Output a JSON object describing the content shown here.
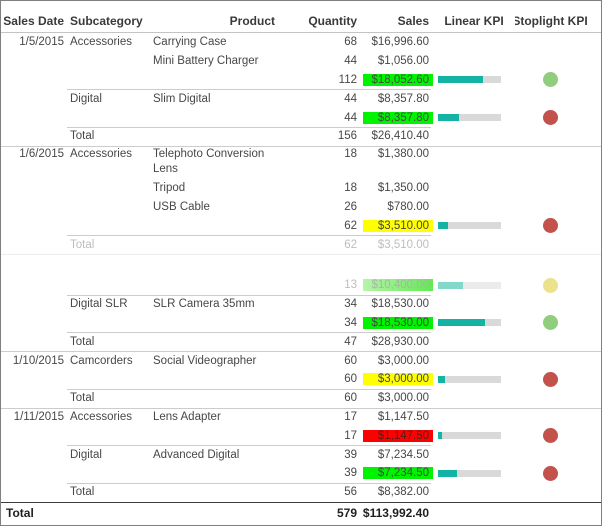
{
  "colors": {
    "kpi_cell_green": "#00f400",
    "kpi_cell_yellow": "#ffff00",
    "kpi_cell_red": "#ff0000",
    "linear_kpi_fill": "#14b3a4",
    "linear_kpi_track": "#d9d9d9",
    "stoplight_green": "#90ce7e",
    "stoplight_red": "#c4524c",
    "stoplight_yellow": "#ece28b"
  },
  "header": {
    "sales_date": "Sales Date",
    "subcategory": "Subcategory",
    "product": "Product",
    "quantity": "Quantity",
    "sales": "Sales",
    "linear_kpi": "Linear KPI",
    "stoplight_kpi": "Stoplight KPI"
  },
  "grand_total": {
    "label": "Total",
    "quantity": "579",
    "sales": "$113,992.40"
  },
  "rows": [
    {
      "t": "detail",
      "date": "1/5/2015",
      "sub": "Accessories",
      "prod": "Carrying Case",
      "qty": "68",
      "sales": "$16,996.60"
    },
    {
      "t": "detail",
      "prod": "Mini Battery Charger",
      "qty": "44",
      "sales": "$1,056.00"
    },
    {
      "t": "kpi",
      "qty": "112",
      "sales": "$18,052.60",
      "cell": "green",
      "bar": 71,
      "light": "green"
    },
    {
      "t": "detail",
      "sub": "Digital",
      "prod": "Slim Digital",
      "qty": "44",
      "sales": "$8,357.80",
      "border": "sub"
    },
    {
      "t": "kpi",
      "qty": "44",
      "sales": "$8,357.80",
      "cell": "green",
      "bar": 33,
      "light": "red"
    },
    {
      "t": "total",
      "label": "Total",
      "qty": "156",
      "sales": "$26,410.40",
      "border": "sub"
    },
    {
      "t": "detail",
      "tall": true,
      "date": "1/6/2015",
      "sub": "Accessories",
      "prod": "Telephoto Conversion Lens",
      "qty": "18",
      "sales": "$1,380.00",
      "border": "full"
    },
    {
      "t": "detail",
      "prod": "Tripod",
      "qty": "18",
      "sales": "$1,350.00"
    },
    {
      "t": "detail",
      "prod": "USB Cable",
      "qty": "26",
      "sales": "$780.00"
    },
    {
      "t": "kpi",
      "qty": "62",
      "sales": "$3,510.00",
      "cell": "yellow",
      "bar": 16,
      "light": "red"
    },
    {
      "t": "total",
      "label": "Total",
      "qty": "62",
      "sales": "$3,510.00",
      "border": "sub",
      "faded": true
    },
    {
      "t": "blank",
      "faded": true,
      "border": "faded"
    },
    {
      "t": "kpi",
      "qty": "13",
      "sales": "$10,400.00",
      "cell": "fadedgreen",
      "bar": 40,
      "light": "yellow",
      "faded": true
    },
    {
      "t": "detail",
      "sub": "Digital SLR",
      "prod": "SLR Camera 35mm",
      "qty": "34",
      "sales": "$18,530.00",
      "border": "sub"
    },
    {
      "t": "kpi",
      "qty": "34",
      "sales": "$18,530.00",
      "cell": "green",
      "bar": 74,
      "light": "green"
    },
    {
      "t": "total",
      "label": "Total",
      "qty": "47",
      "sales": "$28,930.00",
      "border": "sub"
    },
    {
      "t": "detail",
      "date": "1/10/2015",
      "sub": "Camcorders",
      "prod": "Social Videographer",
      "qty": "60",
      "sales": "$3,000.00",
      "border": "full"
    },
    {
      "t": "kpi",
      "qty": "60",
      "sales": "$3,000.00",
      "cell": "yellow",
      "bar": 11,
      "light": "red"
    },
    {
      "t": "total",
      "label": "Total",
      "qty": "60",
      "sales": "$3,000.00",
      "border": "sub"
    },
    {
      "t": "detail",
      "date": "1/11/2015",
      "sub": "Accessories",
      "prod": "Lens Adapter",
      "qty": "17",
      "sales": "$1,147.50",
      "border": "full"
    },
    {
      "t": "kpi",
      "qty": "17",
      "sales": "$1,147.50",
      "cell": "red",
      "bar": 6,
      "light": "red"
    },
    {
      "t": "detail",
      "sub": "Digital",
      "prod": "Advanced Digital",
      "qty": "39",
      "sales": "$7,234.50",
      "border": "sub"
    },
    {
      "t": "kpi",
      "qty": "39",
      "sales": "$7,234.50",
      "cell": "green",
      "bar": 30,
      "light": "red"
    },
    {
      "t": "total",
      "label": "Total",
      "qty": "56",
      "sales": "$8,382.00",
      "border": "sub"
    }
  ]
}
